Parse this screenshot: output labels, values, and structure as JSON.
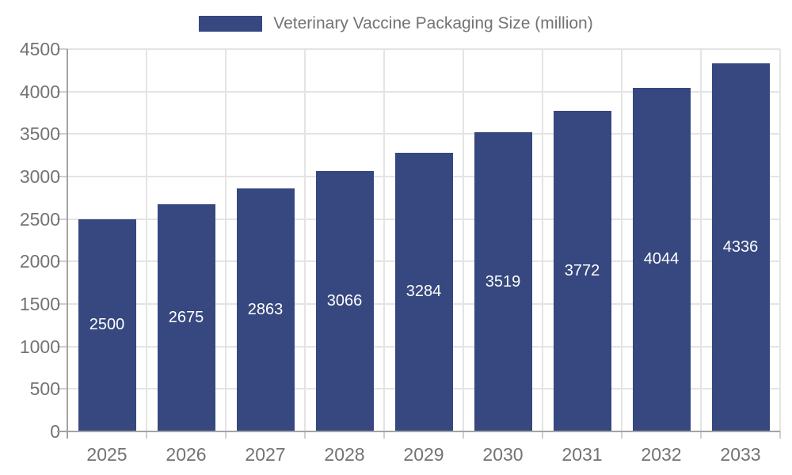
{
  "legend": {
    "label": "Veterinary Vaccine Packaging Size (million)"
  },
  "chart_data": {
    "type": "bar",
    "title": "Veterinary Vaccine Packaging Size (million)",
    "categories": [
      "2025",
      "2026",
      "2027",
      "2028",
      "2029",
      "2030",
      "2031",
      "2032",
      "2033"
    ],
    "values": [
      2500,
      2675,
      2863,
      3066,
      3284,
      3519,
      3772,
      4044,
      4336
    ],
    "xlabel": "",
    "ylabel": "",
    "ylim": [
      0,
      4500
    ],
    "ytick_step": 500,
    "ytick_labels": [
      "0",
      "500",
      "1000",
      "1500",
      "2000",
      "2500",
      "3000",
      "3500",
      "4000",
      "4500"
    ],
    "grid": true,
    "legend_position": "top",
    "value_labels_inside_bars": true
  },
  "colors": {
    "bar": "#36487f",
    "grid_line": "#e4e4e4",
    "axis_line": "#a3a3a3",
    "tick": "#cfcfcf",
    "label_text": "#737373",
    "bar_label_text": "#ffffff"
  }
}
